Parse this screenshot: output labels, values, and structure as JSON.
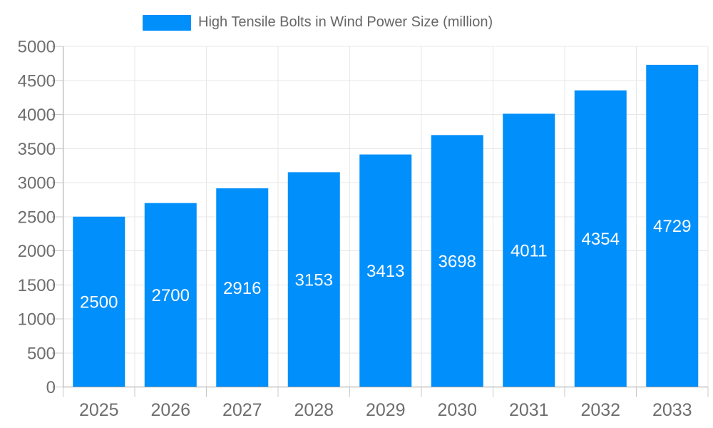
{
  "chart_data": {
    "type": "bar",
    "legend": "High Tensile Bolts in Wind Power Size (million)",
    "legend_position": "top",
    "categories": [
      "2025",
      "2026",
      "2027",
      "2028",
      "2029",
      "2030",
      "2031",
      "2032",
      "2033"
    ],
    "values": [
      2500,
      2700,
      2916,
      3153,
      3413,
      3698,
      4011,
      4354,
      4729
    ],
    "value_labels": [
      "2500",
      "2700",
      "2916",
      "3153",
      "3413",
      "3698",
      "4011",
      "4354",
      "4729"
    ],
    "ylim": [
      0,
      5000
    ],
    "ytick_step": 500,
    "ytick_labels": [
      "0",
      "500",
      "1000",
      "1500",
      "2000",
      "2500",
      "3000",
      "3500",
      "4000",
      "4500",
      "5000"
    ],
    "grid": true,
    "colors": {
      "bar": "#008FFB",
      "grid_line": "#e7e7e7",
      "axis_line": "#9e9e9e",
      "tick_line": "#c9c9c9",
      "axis_label": "#6e6e6e",
      "legend_text": "#666666",
      "value_label": "#ffffff",
      "background": "#ffffff"
    }
  }
}
